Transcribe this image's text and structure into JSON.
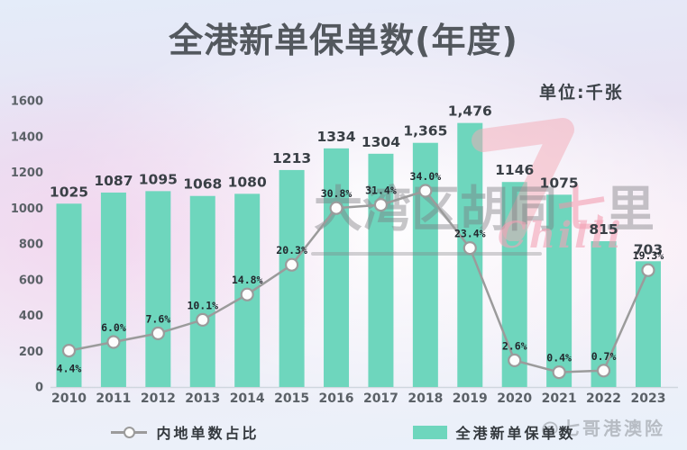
{
  "header": {
    "title": "全港新单保单数(年度)",
    "unit_label": "单位:千张"
  },
  "chart_data": {
    "type": "bar",
    "title": "全港新单保单数(年度)",
    "unit": "千张",
    "categories": [
      "2010",
      "2011",
      "2012",
      "2013",
      "2014",
      "2015",
      "2016",
      "2017",
      "2018",
      "2019",
      "2020",
      "2021",
      "2022",
      "2023"
    ],
    "series": [
      {
        "name": "全港新单保单数",
        "type": "bar",
        "values": [
          1025,
          1087,
          1095,
          1068,
          1080,
          1213,
          1334,
          1304,
          1365,
          1476,
          1146,
          1075,
          815,
          703
        ],
        "value_labels": [
          "1025",
          "1087",
          "1095",
          "1068",
          "1080",
          "1213",
          "1334",
          "1304",
          "1,365",
          "1,476",
          "1146",
          "1075",
          "815",
          "703"
        ],
        "color": "#6ed6bd"
      },
      {
        "name": "内地单数占比",
        "type": "line",
        "values": [
          4.4,
          6.0,
          7.6,
          10.1,
          14.8,
          20.3,
          30.8,
          31.4,
          34.0,
          23.4,
          2.6,
          0.4,
          0.7,
          19.3
        ],
        "value_labels": [
          "4.4%",
          "6.0%",
          "7.6%",
          "10.1%",
          "14.8%",
          "20.3%",
          "30.8%",
          "31.4%",
          "34.0%",
          "23.4%",
          "2.6%",
          "0.4%",
          "0.7%",
          "19.3%"
        ],
        "color": "#9b9b9b",
        "marker_fill": "#fdfdfd"
      }
    ],
    "ylim": [
      0,
      1600
    ],
    "y_ticks": [
      0,
      200,
      400,
      600,
      800,
      1000,
      1200,
      1400,
      1600
    ],
    "grid": false,
    "legend_position": "bottom"
  },
  "watermark": {
    "center_main": "大湾区胡同",
    "center_accent": "七",
    "center_tail": "里",
    "center_script": "Chilli",
    "corner": "@七哥港澳险"
  },
  "colors": {
    "bar": "#6ed6bd",
    "line": "#9b9b9b",
    "axis": "#cfd6de",
    "text_dark": "#3a4046",
    "text_gray": "#5b6167",
    "accent_pink": "#f3a7b6"
  }
}
